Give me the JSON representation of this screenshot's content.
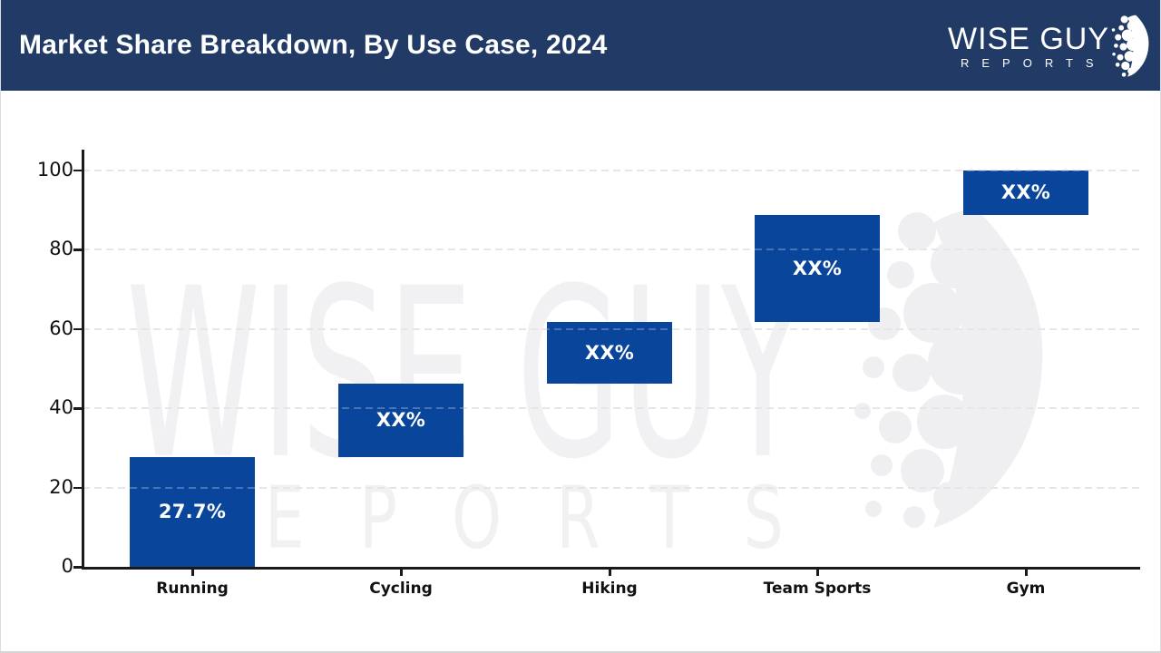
{
  "header": {
    "title": "Market Share Breakdown, By Use Case, 2024",
    "logo": {
      "line1": "WISE GUY",
      "line2": "REPORTS"
    }
  },
  "watermark": {
    "line1": "WISE GUY",
    "line2": "REPORTS"
  },
  "chart_data": {
    "type": "bar",
    "subtype": "waterfall",
    "title": "Market Share Breakdown, By Use Case, 2024",
    "categories": [
      "Running",
      "Cycling",
      "Hiking",
      "Team Sports",
      "Gym"
    ],
    "segments": [
      {
        "category": "Running",
        "start": 0,
        "end": 27.7,
        "label": "27.7%"
      },
      {
        "category": "Cycling",
        "start": 27.7,
        "end": 46.2,
        "label": "XX%"
      },
      {
        "category": "Hiking",
        "start": 46.2,
        "end": 61.8,
        "label": "XX%"
      },
      {
        "category": "Team Sports",
        "start": 61.8,
        "end": 88.6,
        "label": "XX%"
      },
      {
        "category": "Gym",
        "start": 88.6,
        "end": 100,
        "label": "XX%"
      }
    ],
    "ylim": [
      0,
      100
    ],
    "yticks": [
      0,
      20,
      40,
      60,
      80,
      100
    ],
    "grid": "horizontal-dashed",
    "legend": "none",
    "bar_color": "#09459a",
    "colors": {
      "header_bg": "#213a66",
      "axis": "#1a1a1a",
      "gridline": "#dedede",
      "bar_label": "#ffffff",
      "watermark": "#f1f1f3"
    }
  }
}
